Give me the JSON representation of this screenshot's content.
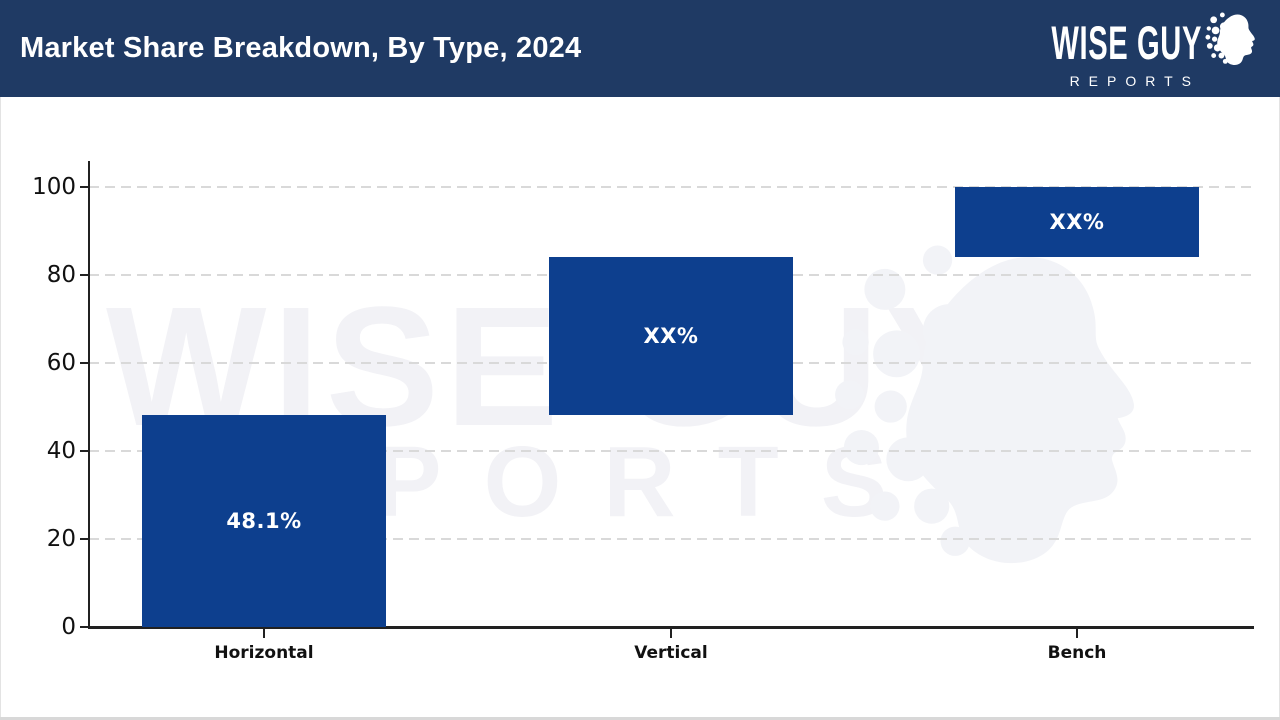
{
  "header": {
    "title": "Market Share Breakdown, By Type, 2024",
    "background_color": "#1f3a64",
    "logo": {
      "primary": "WISE GUY",
      "secondary": "REPORTS"
    }
  },
  "watermark": {
    "primary": "WISE GUY",
    "secondary": "REPORTS"
  },
  "chart_data": {
    "type": "bar",
    "subtype": "stacked-waterfall",
    "title": "Market Share Breakdown, By Type, 2024",
    "xlabel": "",
    "ylabel": "",
    "categories": [
      "Horizontal",
      "Vertical",
      "Bench"
    ],
    "segments": [
      {
        "category": "Horizontal",
        "start": 0,
        "end": 48.1,
        "label": "48.1%"
      },
      {
        "category": "Vertical",
        "start": 48.1,
        "end": 84,
        "label": "XX%"
      },
      {
        "category": "Bench",
        "start": 84,
        "end": 100,
        "label": "XX%"
      }
    ],
    "ylim": [
      0,
      100
    ],
    "yticks": [
      0,
      20,
      40,
      60,
      80,
      100
    ],
    "grid": "horizontal-dashed",
    "legend": "none",
    "bar_color": "#0d3f8e",
    "bar_label_color": "#ffffff",
    "axis_color": "#212121",
    "gridline_color": "#d9d9d9"
  }
}
